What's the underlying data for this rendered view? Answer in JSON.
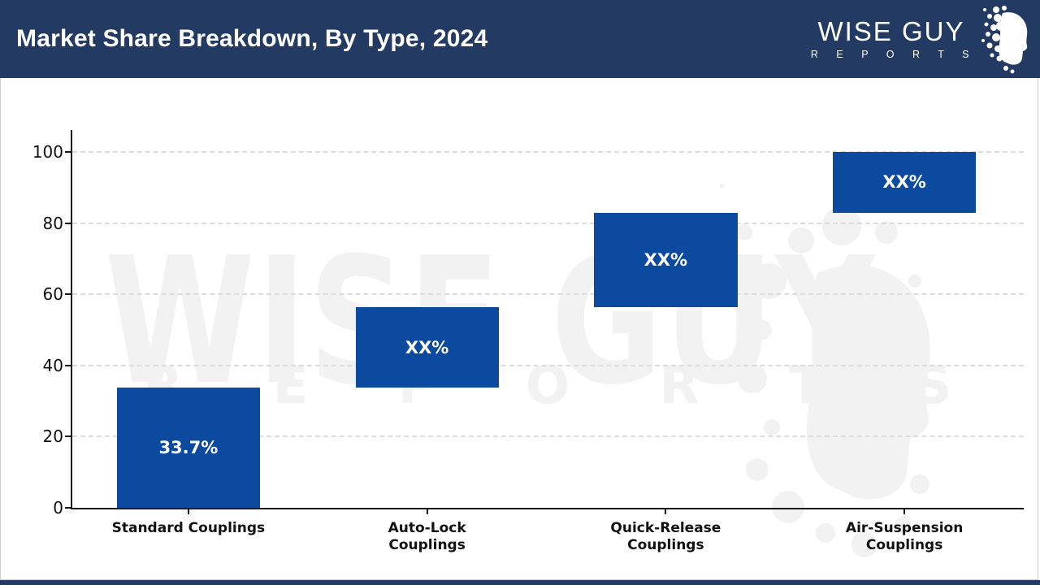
{
  "header": {
    "title": "Market Share Breakdown, By Type, 2024",
    "bg_color": "#233A62",
    "text_color": "#FFFFFF"
  },
  "logo": {
    "primary": "WISE GUY",
    "secondary": "R E P O R T S"
  },
  "watermark": {
    "line1": "WISE GUY",
    "line2": "R E P O R T S",
    "color": "#F2F2F2"
  },
  "chart_data": {
    "type": "bar",
    "subtype": "waterfall",
    "title": "Market Share Breakdown, By Type, 2024",
    "categories": [
      "Standard Couplings",
      "Auto-Lock Couplings",
      "Quick-Release Couplings",
      "Air-Suspension Couplings"
    ],
    "bars": [
      {
        "lines": [
          "Standard Couplings"
        ],
        "start": 0,
        "end": 33.7,
        "label": "33.7%"
      },
      {
        "lines": [
          "Auto-Lock",
          "Couplings"
        ],
        "start": 33.7,
        "end": 56.3,
        "label": "XX%"
      },
      {
        "lines": [
          "Quick-Release",
          "Couplings"
        ],
        "start": 56.3,
        "end": 82.9,
        "label": "XX%"
      },
      {
        "lines": [
          "Air-Suspension",
          "Couplings"
        ],
        "start": 82.9,
        "end": 100,
        "label": "XX%"
      }
    ],
    "bar_color": "#0B4A9E",
    "value_label_color": "#FFFFFF",
    "y_ticks": [
      0,
      20,
      40,
      60,
      80,
      100
    ],
    "ylim": [
      0,
      100
    ],
    "xlabel": "",
    "ylabel": "",
    "grid": "horizontal-dashed",
    "legend": "none"
  }
}
